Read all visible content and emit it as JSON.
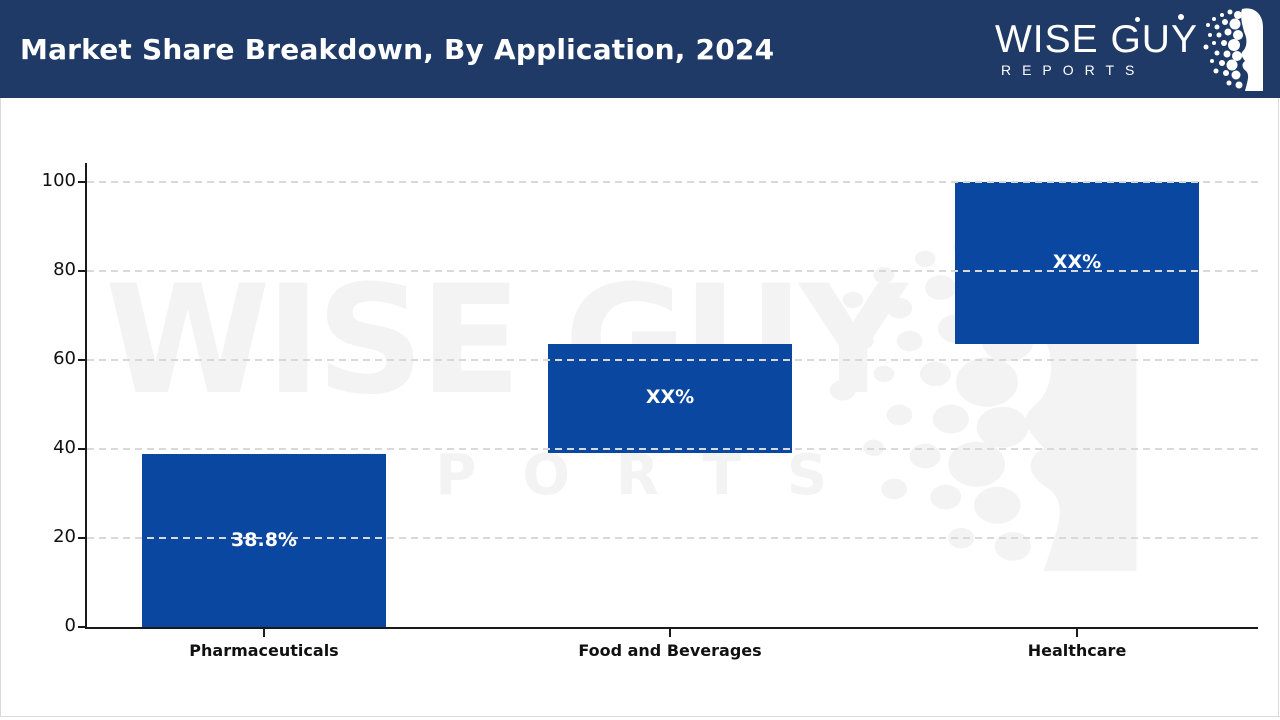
{
  "header": {
    "title": "Market Share Breakdown, By Application, 2024",
    "logo": {
      "line1": "WISE GUY",
      "line2": "REPORTS"
    }
  },
  "watermark": {
    "line1": "WISE GUY",
    "line2": "REPORTS"
  },
  "chart_data": {
    "type": "bar",
    "subtype": "waterfall",
    "title": "Market Share Breakdown, By Application, 2024",
    "categories": [
      "Pharmaceuticals",
      "Food and Beverages",
      "Healthcare"
    ],
    "segments": [
      {
        "category": "Pharmaceuticals",
        "start": 0,
        "end": 38.8,
        "label": "38.8%"
      },
      {
        "category": "Food and Beverages",
        "start": 39,
        "end": 63.7,
        "label": "XX%"
      },
      {
        "category": "Healthcare",
        "start": 63.7,
        "end": 100,
        "label": "XX%"
      }
    ],
    "ylim": [
      0,
      100
    ],
    "yticks": [
      0,
      20,
      40,
      60,
      80,
      100
    ],
    "grid": "horizontal-dashed",
    "legend": "none",
    "bar_color": "#0a47a0",
    "bar_label_color": "#ffffff",
    "gridline_color": "#d9d9d9",
    "axis_color": "#1a1a1a"
  },
  "colors": {
    "header_background": "#1f3a66",
    "canvas_background": "#ffffff",
    "watermark": "#f3f3f4"
  }
}
